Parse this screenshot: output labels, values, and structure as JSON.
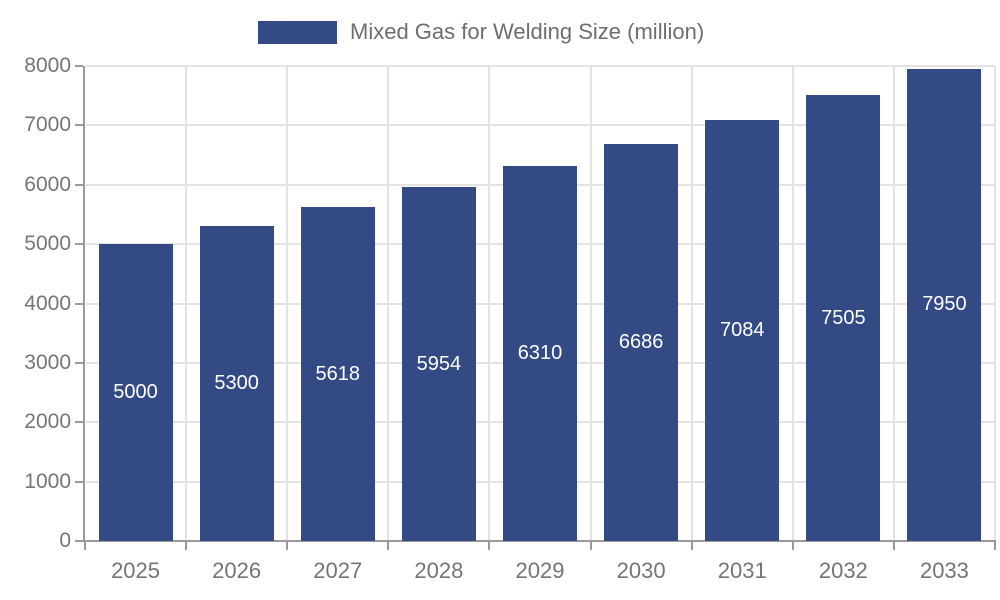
{
  "chart_data": {
    "type": "bar",
    "title": "",
    "legend": "Mixed Gas for Welding Size (million)",
    "legend_position": "top",
    "series_name": "Mixed Gas for Welding Size (million)",
    "categories": [
      "2025",
      "2026",
      "2027",
      "2028",
      "2029",
      "2030",
      "2031",
      "2032",
      "2033"
    ],
    "values": [
      5000,
      5300,
      5618,
      5954,
      6310,
      6686,
      7084,
      7505,
      7950
    ],
    "xlabel": "",
    "ylabel": "",
    "ylim": [
      0,
      8000
    ],
    "ytick_step": 1000,
    "y_tick_labels": [
      "0",
      "1000",
      "2000",
      "3000",
      "4000",
      "5000",
      "6000",
      "7000",
      "8000"
    ],
    "grid": true,
    "colors": {
      "bar": "#344a85",
      "bar_label": "#ffffff",
      "axis_text": "#757575",
      "legend_text": "#6e6e6e",
      "gridline": "#e3e3e3",
      "axis_line": "#9a9a9a",
      "background": "#ffffff"
    }
  }
}
